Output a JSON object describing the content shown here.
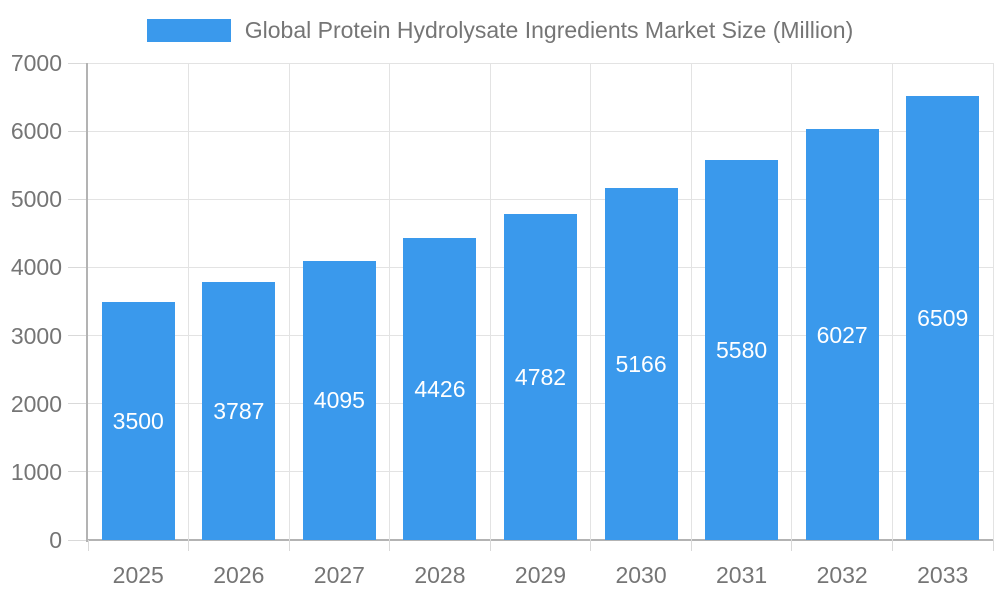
{
  "chart_data": {
    "type": "bar",
    "title": "Global Protein Hydrolysate Ingredients Market Size (Million)",
    "categories": [
      "2025",
      "2026",
      "2027",
      "2028",
      "2029",
      "2030",
      "2031",
      "2032",
      "2033"
    ],
    "values": [
      3500,
      3787,
      4095,
      4426,
      4782,
      5166,
      5580,
      6027,
      6509
    ],
    "xlabel": "",
    "ylabel": "",
    "ylim": [
      0,
      7000
    ],
    "yticks": [
      0,
      1000,
      2000,
      3000,
      4000,
      5000,
      6000,
      7000
    ],
    "grid": true,
    "legend_position": "top",
    "colors": {
      "bar": "#3A99EC",
      "value_label": "#FFFFFF",
      "axis_text": "#757575",
      "gridline": "#E3E3E3",
      "tick": "#D9D9D9",
      "axis_line": "#B3B3B3"
    }
  }
}
